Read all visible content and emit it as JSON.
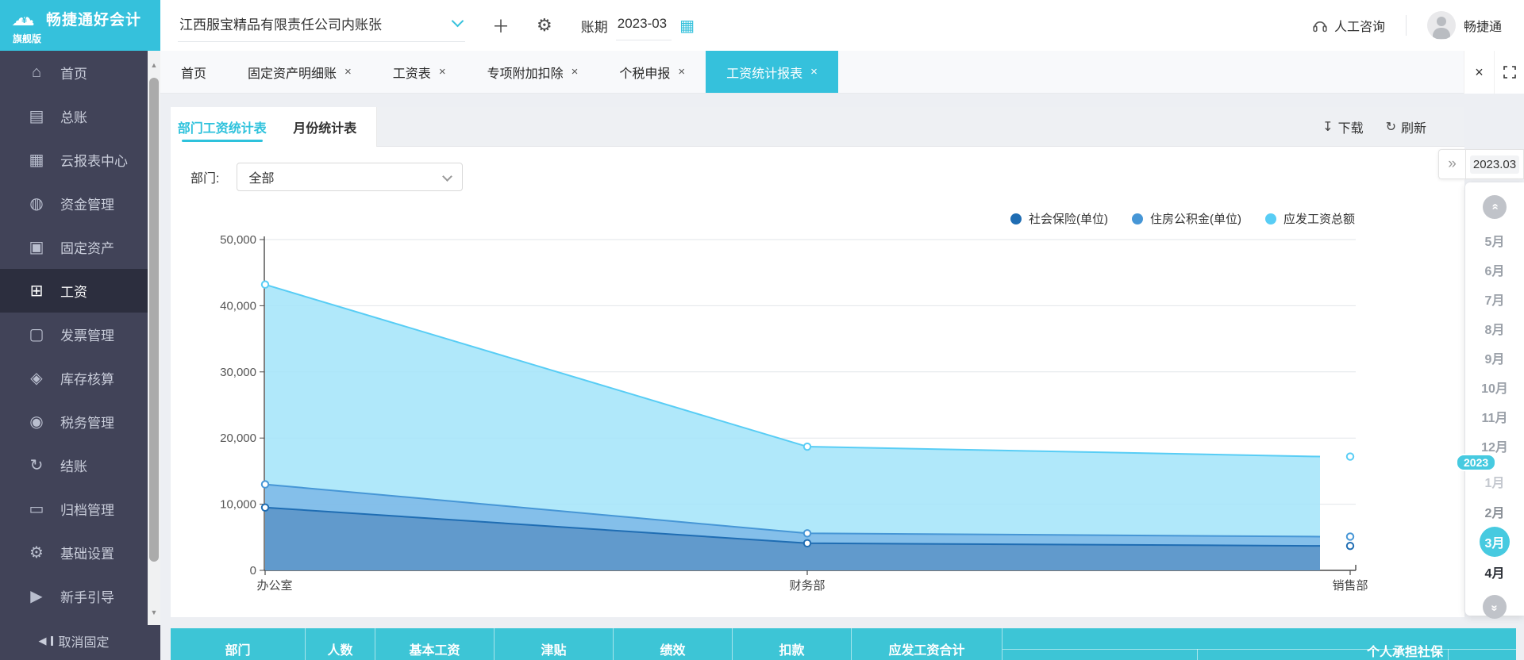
{
  "brand": {
    "name": "畅捷通好会计",
    "edition": "旗舰版"
  },
  "header": {
    "company": "江西服宝精品有限责任公司内账张",
    "period_label": "账期",
    "period_value": "2023-03",
    "support": "人工咨询",
    "user": "畅捷通"
  },
  "sidebar": {
    "items": [
      {
        "key": "home",
        "label": "首页",
        "icon": "home-icon",
        "glyph": "⌂"
      },
      {
        "key": "ledger",
        "label": "总账",
        "icon": "ledger-icon",
        "glyph": "▤"
      },
      {
        "key": "cloud-report",
        "label": "云报表中心",
        "icon": "cloud-report-icon",
        "glyph": "▦"
      },
      {
        "key": "funds",
        "label": "资金管理",
        "icon": "money-bag-icon",
        "glyph": "◍"
      },
      {
        "key": "fixed-assets",
        "label": "固定资产",
        "icon": "building-icon",
        "glyph": "▣"
      },
      {
        "key": "salary",
        "label": "工资",
        "icon": "calculator-icon",
        "glyph": "⊞",
        "active": true
      },
      {
        "key": "invoice",
        "label": "发票管理",
        "icon": "invoice-icon",
        "glyph": "▢"
      },
      {
        "key": "inventory",
        "label": "库存核算",
        "icon": "warehouse-icon",
        "glyph": "◈"
      },
      {
        "key": "tax",
        "label": "税务管理",
        "icon": "tax-icon",
        "glyph": "◉"
      },
      {
        "key": "closing",
        "label": "结账",
        "icon": "closing-icon",
        "glyph": "↻"
      },
      {
        "key": "archive",
        "label": "归档管理",
        "icon": "archive-icon",
        "glyph": "▭"
      },
      {
        "key": "settings",
        "label": "基础设置",
        "icon": "gear-icon",
        "glyph": "⚙"
      },
      {
        "key": "guide",
        "label": "新手引导",
        "icon": "video-guide-icon",
        "glyph": "▶"
      }
    ],
    "unpin_label": "取消固定"
  },
  "tabs": [
    {
      "key": "home",
      "label": "首页",
      "closable": false
    },
    {
      "key": "fixed-asset-log",
      "label": "固定资产明细账",
      "closable": true
    },
    {
      "key": "salary-sheet",
      "label": "工资表",
      "closable": true
    },
    {
      "key": "special-deduct",
      "label": "专项附加扣除",
      "closable": true
    },
    {
      "key": "tax-filing",
      "label": "个税申报",
      "closable": true
    },
    {
      "key": "salary-report",
      "label": "工资统计报表",
      "closable": true,
      "active": true
    }
  ],
  "subtabs": [
    {
      "key": "dept",
      "label": "部门工资统计表",
      "active": true
    },
    {
      "key": "month",
      "label": "月份统计表"
    }
  ],
  "toolbar": {
    "download": "下载",
    "refresh": "刷新"
  },
  "filter": {
    "label": "部门:",
    "value": "全部"
  },
  "chart_data": {
    "type": "area",
    "categories": [
      "办公室",
      "财务部",
      "销售部"
    ],
    "series": [
      {
        "name": "社会保险(单位)",
        "values": [
          9500,
          4100,
          3700
        ],
        "line": "#1f6db3",
        "fill": "#5e97c9",
        "fill_opacity": 0.92
      },
      {
        "name": "住房公积金(单位)",
        "values": [
          13000,
          5600,
          5100
        ],
        "line": "#4696d6",
        "fill": "#7db7e6",
        "fill_opacity": 0.85
      },
      {
        "name": "应发工资总额",
        "values": [
          43200,
          18700,
          17200
        ],
        "line": "#58cdf5",
        "fill": "#a2e4f9",
        "fill_opacity": 0.85
      }
    ],
    "ylim": [
      0,
      50000
    ],
    "ytick_step": 10000,
    "grid": true,
    "legend_position": "top-right",
    "title": "",
    "xlabel": "",
    "ylabel": ""
  },
  "period_panel": {
    "current": "2023.03",
    "year_badge": "2023",
    "months_top": [
      "5月",
      "6月",
      "7月",
      "8月",
      "9月",
      "10月",
      "11月",
      "12月"
    ],
    "months_bottom": [
      {
        "label": "1月",
        "state": "muted"
      },
      {
        "label": "2月",
        "state": "normal"
      },
      {
        "label": "3月",
        "state": "selected"
      },
      {
        "label": "4月",
        "state": "strong"
      }
    ]
  },
  "table": {
    "columns": [
      "部门",
      "人数",
      "基本工资",
      "津贴",
      "绩效",
      "扣款",
      "应发工资合计"
    ],
    "group_header": "个人承担社保"
  }
}
